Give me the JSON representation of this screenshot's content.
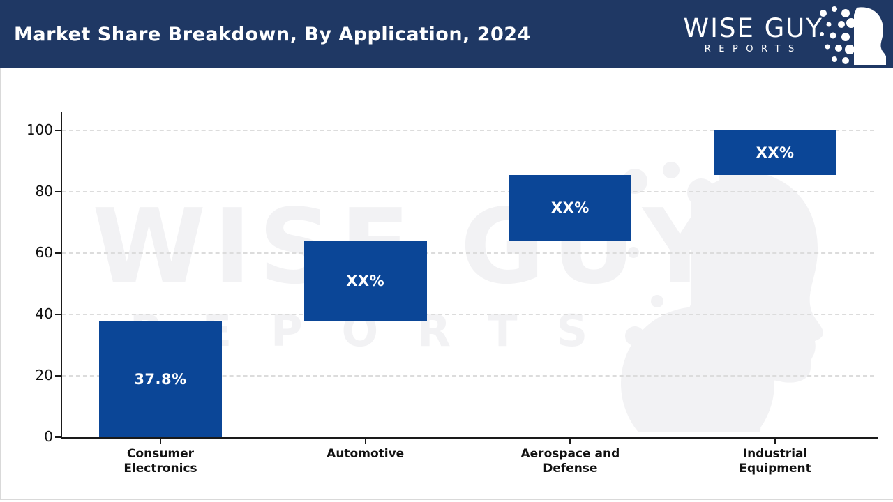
{
  "header": {
    "title": "Market Share Breakdown, By Application, 2024",
    "background_color": "#1f3864",
    "text_color": "#ffffff",
    "logo": {
      "line1": "WISE GUY",
      "line2": "REPORTS"
    }
  },
  "watermark": {
    "line1": "WISE GUY",
    "line2": "REPORTS"
  },
  "chart_data": {
    "type": "bar",
    "subtype": "floating-waterfall",
    "title": "Market Share Breakdown, By Application, 2024",
    "categories": [
      "Consumer\nElectronics",
      "Automotive",
      "Aerospace and\nDefense",
      "Industrial\nEquipment"
    ],
    "series": [
      {
        "name": "Market share (%)",
        "start": [
          0,
          37.8,
          64,
          85.5
        ],
        "end": [
          37.8,
          64,
          85.5,
          100
        ]
      }
    ],
    "bar_labels": [
      "37.8%",
      "XX%",
      "XX%",
      "XX%"
    ],
    "yticks": [
      0,
      20,
      40,
      60,
      80,
      100
    ],
    "ylim": [
      0,
      106
    ],
    "xlabel": "",
    "ylabel": "",
    "grid": {
      "axis": "y",
      "style": "dashed",
      "color": "#dcdcdc"
    },
    "legend": "none",
    "bar_color": "#0b4697",
    "bar_label_color": "#ffffff",
    "axis_color": "#1a1a1a",
    "tick_label_color": "#111111"
  }
}
